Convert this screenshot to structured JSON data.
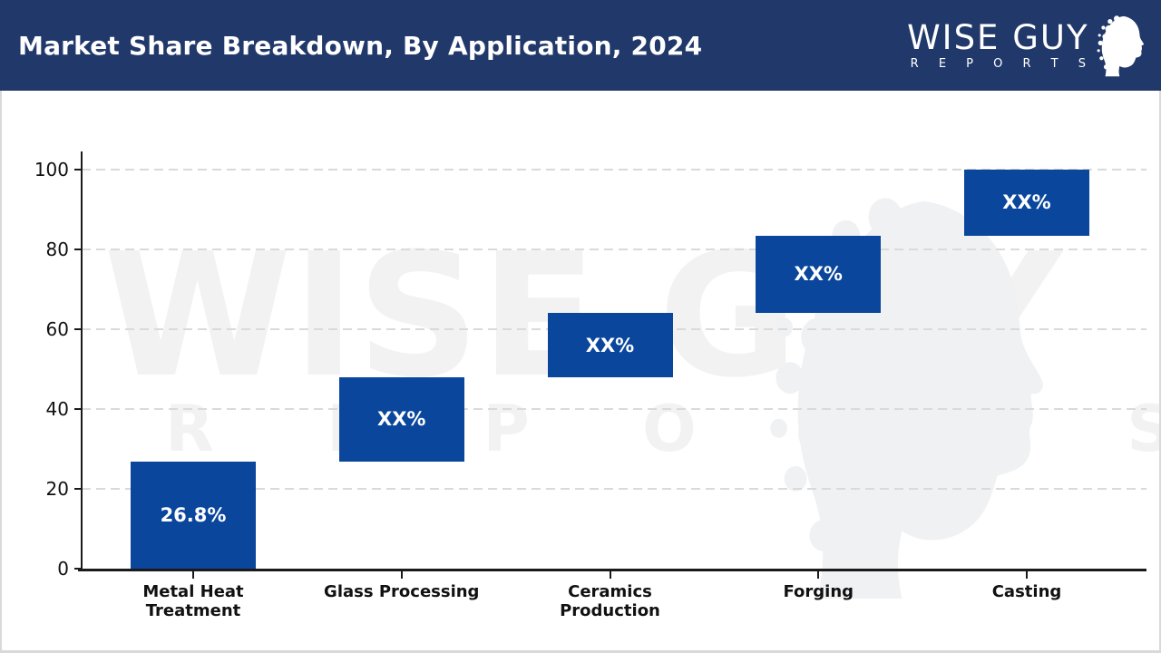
{
  "header": {
    "title": "Market Share Breakdown, By Application, 2024",
    "logo": {
      "line1": "WISE GUY",
      "line2": "R E P O R T S"
    }
  },
  "watermark": {
    "line1": "WISE GUY",
    "line2": "R E P O R T S"
  },
  "colors": {
    "header_bg": "#21386a",
    "bar": "#0a469c",
    "grid": "#dadada",
    "axis": "#1a1a1a",
    "watermark": "#f2f2f3",
    "bar_label": "#ffffff"
  },
  "chart_data": {
    "type": "bar",
    "subtype": "floating-waterfall",
    "title": "Market Share Breakdown, By Application, 2024",
    "categories": [
      "Metal Heat Treatment",
      "Glass Processing",
      "Ceramics Production",
      "Forging",
      "Casting"
    ],
    "category_label_lines": [
      [
        "Metal Heat",
        "Treatment"
      ],
      [
        "Glass Processing"
      ],
      [
        "Ceramics",
        "Production"
      ],
      [
        "Forging"
      ],
      [
        "Casting"
      ]
    ],
    "segments": [
      {
        "category": "Metal Heat Treatment",
        "start": 0,
        "end": 26.8,
        "label": "26.8%"
      },
      {
        "category": "Glass Processing",
        "start": 26.8,
        "end": 48.0,
        "label": "XX%"
      },
      {
        "category": "Ceramics Production",
        "start": 48.0,
        "end": 64.0,
        "label": "XX%"
      },
      {
        "category": "Forging",
        "start": 64.0,
        "end": 83.5,
        "label": "XX%"
      },
      {
        "category": "Casting",
        "start": 83.5,
        "end": 100.0,
        "label": "XX%"
      }
    ],
    "ylim": [
      0,
      100
    ],
    "yticks": [
      0,
      20,
      40,
      60,
      80,
      100
    ],
    "xlabel": "",
    "ylabel": "",
    "grid": "horizontal-dashed",
    "legend": "none"
  }
}
